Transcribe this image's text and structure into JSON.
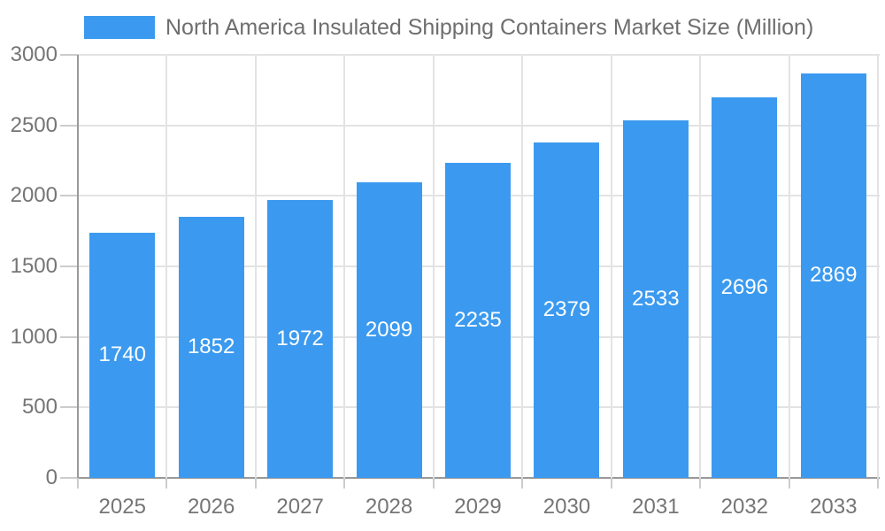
{
  "legend": {
    "label": "North America Insulated Shipping Containers Market Size (Million)"
  },
  "colors": {
    "bar": "#3b9aef",
    "axis_text": "#757575",
    "legend_text": "#6e6e6e",
    "axis_line": "#999999",
    "grid_line": "#e3e3e3",
    "tick_line": "#cccccc",
    "value_label": "#ffffff",
    "background": "#ffffff"
  },
  "chart_data": {
    "type": "bar",
    "categories": [
      "2025",
      "2026",
      "2027",
      "2028",
      "2029",
      "2030",
      "2031",
      "2032",
      "2033"
    ],
    "series": [
      {
        "name": "North America Insulated Shipping Containers Market Size (Million)",
        "values": [
          1740,
          1852,
          1972,
          2099,
          2235,
          2379,
          2533,
          2696,
          2869
        ]
      }
    ],
    "title": "",
    "xlabel": "",
    "ylabel": "",
    "ylim": [
      0,
      3000
    ],
    "yticks": [
      0,
      500,
      1000,
      1500,
      2000,
      2500,
      3000
    ],
    "grid": true,
    "legend_position": "top-left",
    "value_label_position": "inside-center"
  }
}
